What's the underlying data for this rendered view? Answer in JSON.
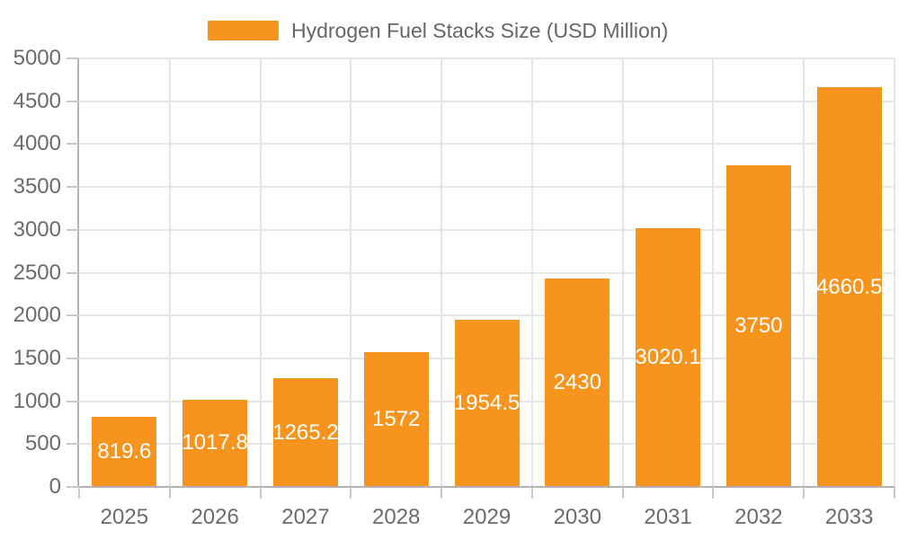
{
  "legend": {
    "label": "Hydrogen Fuel Stacks Size (USD Million)"
  },
  "colors": {
    "bar": "#f7941d",
    "axis_line": "#b3b3b3",
    "gridline": "#e6e6e6",
    "tick": "#c9c9c9",
    "axis_text": "#6b6b6b",
    "legend_text": "#666666",
    "value_label_text": "#ffffff",
    "background": "#ffffff"
  },
  "chart_data": {
    "type": "bar",
    "title": "Hydrogen Fuel Stacks Size (USD Million)",
    "categories": [
      "2025",
      "2026",
      "2027",
      "2028",
      "2029",
      "2030",
      "2031",
      "2032",
      "2033"
    ],
    "values": [
      819.6,
      1017.8,
      1265.2,
      1572,
      1954.5,
      2430,
      3020.1,
      3750,
      4660.5
    ],
    "value_labels": [
      "819.6",
      "1017.8",
      "1265.2",
      "1572",
      "1954.5",
      "2430",
      "3020.1",
      "3750",
      "4660.5"
    ],
    "xlabel": "",
    "ylabel": "",
    "ylim": [
      0,
      5000
    ],
    "ytick_step": 500,
    "grid": true,
    "legend_position": "top-center",
    "value_label_position": "center-of-bar"
  }
}
